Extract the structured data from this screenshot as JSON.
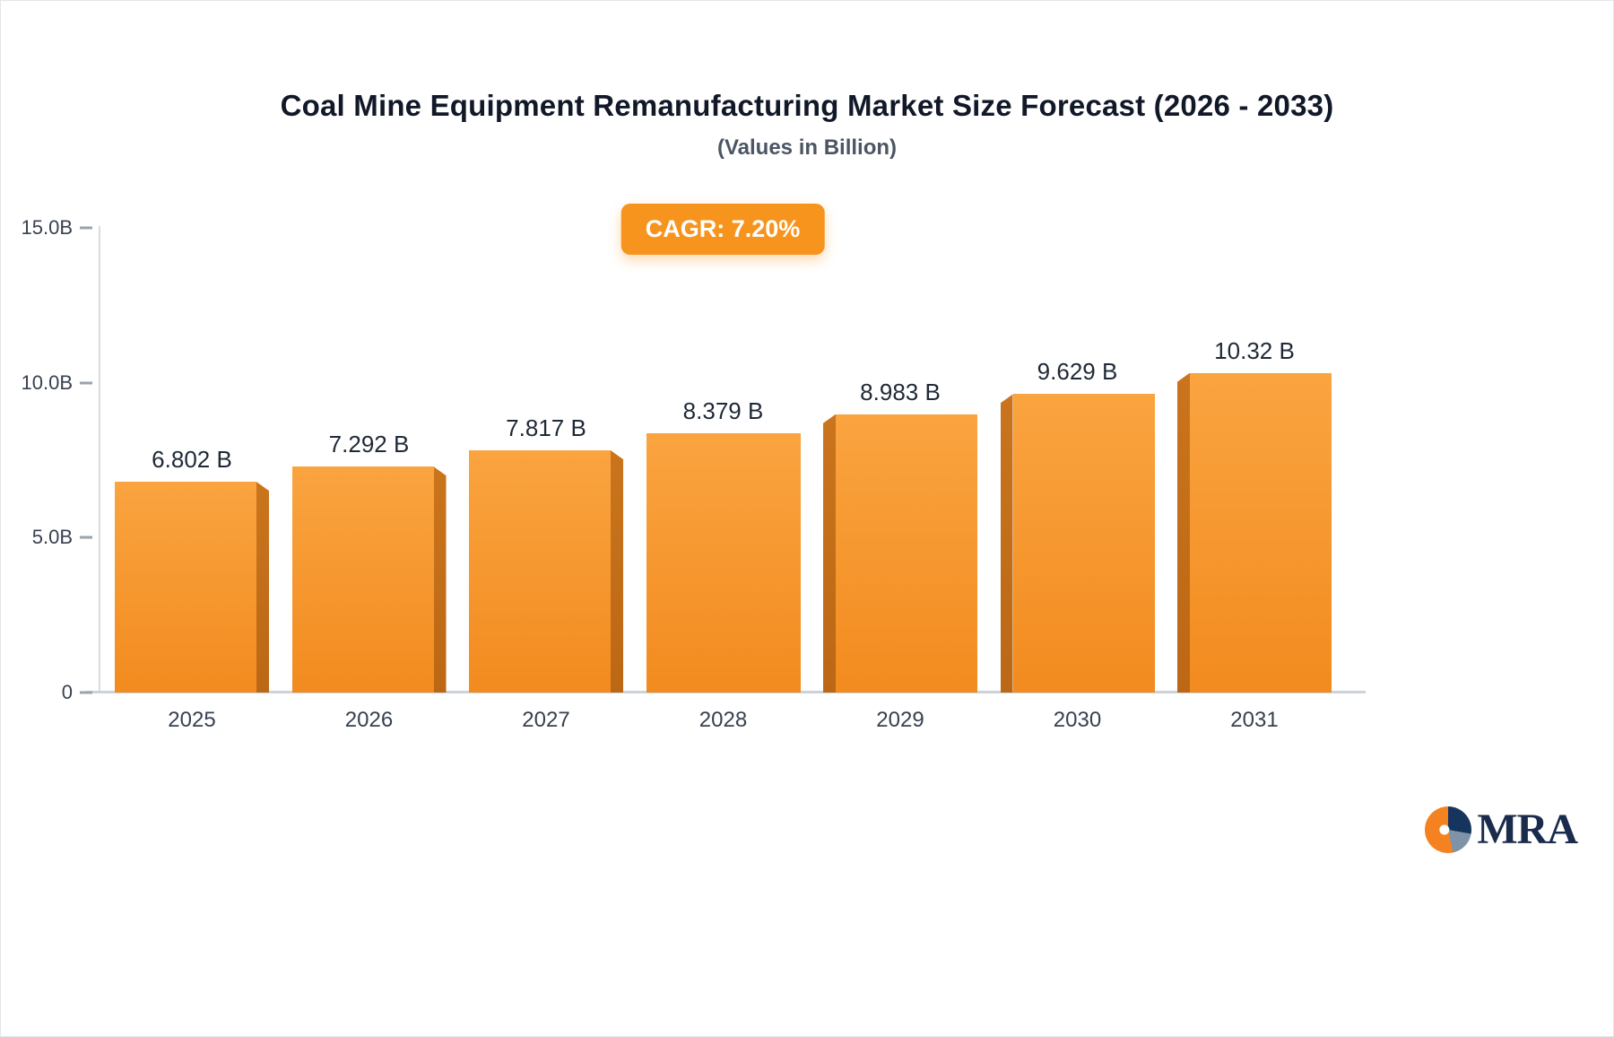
{
  "header": {
    "title": "Coal Mine Equipment Remanufacturing Market Size Forecast (2026 - 2033)",
    "subtitle": "(Values in Billion)"
  },
  "badge": {
    "label": "CAGR: 7.20%",
    "bg": "#F7941E"
  },
  "chart_data": {
    "type": "bar",
    "title": "Coal Mine Equipment Remanufacturing Market Size Forecast (2026 - 2033)",
    "subtitle": "(Values in Billion)",
    "categories": [
      "2025",
      "2026",
      "2027",
      "2028",
      "2029",
      "2030",
      "2031"
    ],
    "values": [
      6.802,
      7.292,
      7.817,
      8.379,
      8.983,
      9.629,
      10.32
    ],
    "value_labels": [
      "6.802 B",
      "7.292 B",
      "7.817 B",
      "8.379 B",
      "8.983 B",
      "9.629 B",
      "10.32 B"
    ],
    "y_ticks": [
      {
        "label": "15.0B",
        "value": 15
      },
      {
        "label": "10.0B",
        "value": 10
      },
      {
        "label": "5.0B",
        "value": 5
      },
      {
        "label": "0",
        "value": 0
      }
    ],
    "ylim": [
      0,
      15
    ],
    "xlabel": "",
    "ylabel": "",
    "grid": "off",
    "legend": "none",
    "bar_color_top": "#FAA440",
    "bar_color_bottom": "#F28B1F",
    "bar_side_color_top": "#CA751D",
    "bar_side_color_bottom": "#BB6714",
    "side_direction": [
      "right",
      "right",
      "right",
      "none",
      "left",
      "left",
      "left"
    ]
  },
  "logo": {
    "text": "MRA",
    "colors": {
      "orange": "#F58220",
      "navy": "#16355C",
      "steel": "#7E93A8"
    }
  }
}
